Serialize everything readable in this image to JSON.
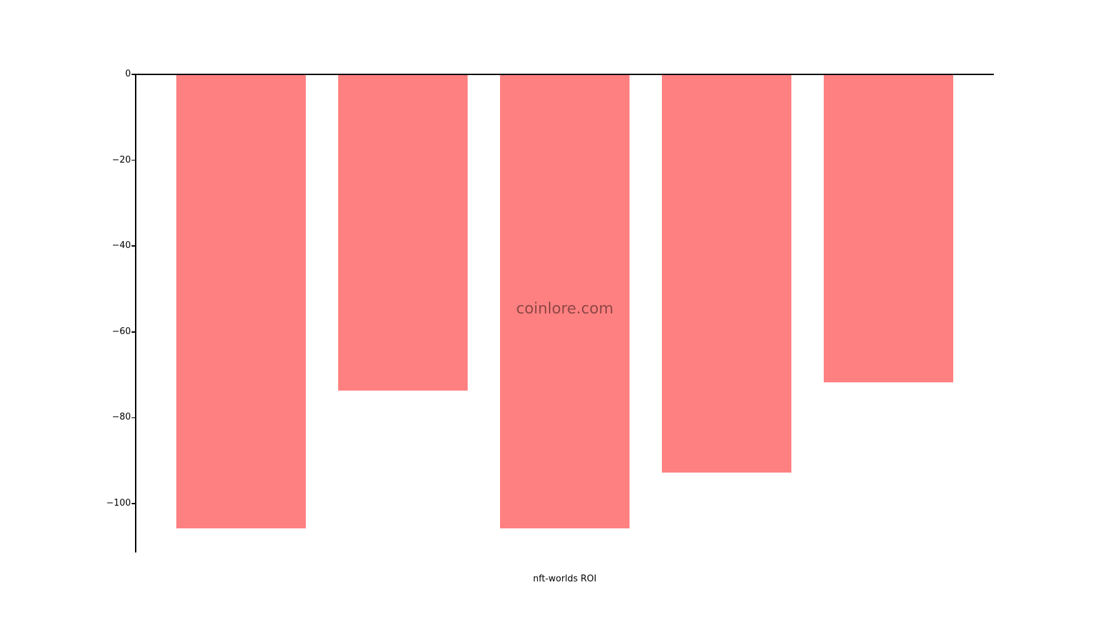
{
  "figure": {
    "background": "#ffffff"
  },
  "chart_data": {
    "type": "bar",
    "title": "",
    "xlabel": "nft-worlds ROI",
    "ylabel": "",
    "categories": [
      "",
      "",
      "",
      "",
      ""
    ],
    "values": [
      -105.8,
      -73.7,
      -105.8,
      -92.7,
      -71.7
    ],
    "ylim": [
      -111.4,
      0
    ],
    "yticks": [
      0,
      -20,
      -40,
      -60,
      -80,
      -100
    ],
    "ytick_labels": [
      "0",
      "−20",
      "−40",
      "−60",
      "−80",
      "−100"
    ],
    "bar_color": "#ff8080",
    "axis_color": "#000000",
    "text_color": "#000000",
    "grid": false,
    "legend_position": "none",
    "watermark": {
      "text": "coinlore.com",
      "color": "rgba(0, 0, 0, 0.45)"
    }
  }
}
